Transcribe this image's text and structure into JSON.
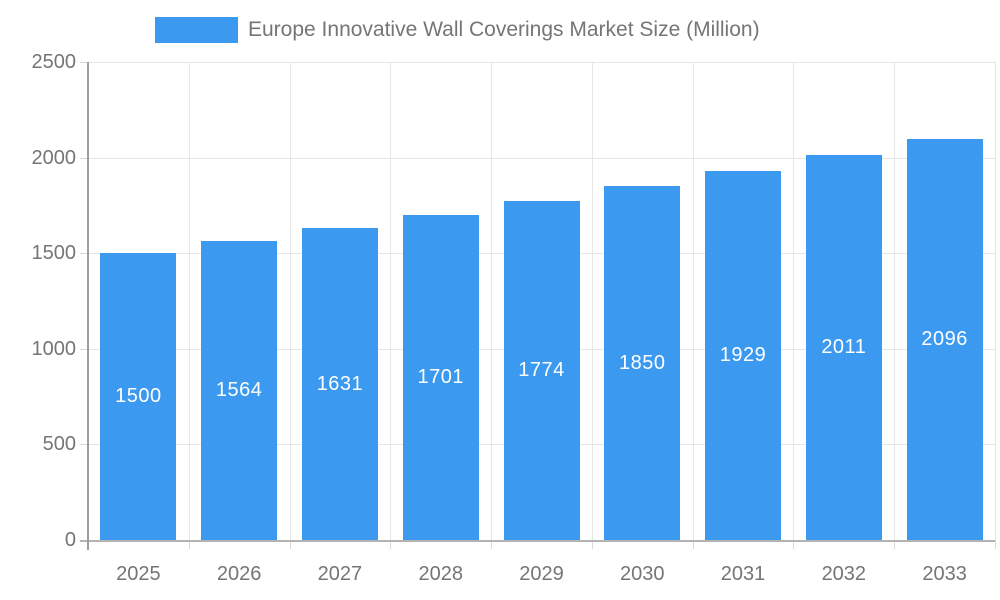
{
  "chart_data": {
    "type": "bar",
    "title": "Europe Innovative Wall Coverings Market Size (Million)",
    "categories": [
      "2025",
      "2026",
      "2027",
      "2028",
      "2029",
      "2030",
      "2031",
      "2032",
      "2033"
    ],
    "values": [
      1500,
      1564,
      1631,
      1701,
      1774,
      1850,
      1929,
      2011,
      2096
    ],
    "xlabel": "",
    "ylabel": "",
    "ylim": [
      0,
      2500
    ],
    "yticks": [
      0,
      500,
      1000,
      1500,
      2000,
      2500
    ],
    "grid": true,
    "legend_position": "top",
    "bar_labels_inside": true,
    "colors": {
      "bar": "#3B99F0",
      "bar_label_text": "#ffffff",
      "axis_text": "#757575",
      "gridline": "#e6e6e6",
      "tick": "#d9d9d9",
      "axis_line": "#b3b3b3",
      "y_axis_line": "#9e9e9e",
      "background": "#ffffff"
    }
  }
}
